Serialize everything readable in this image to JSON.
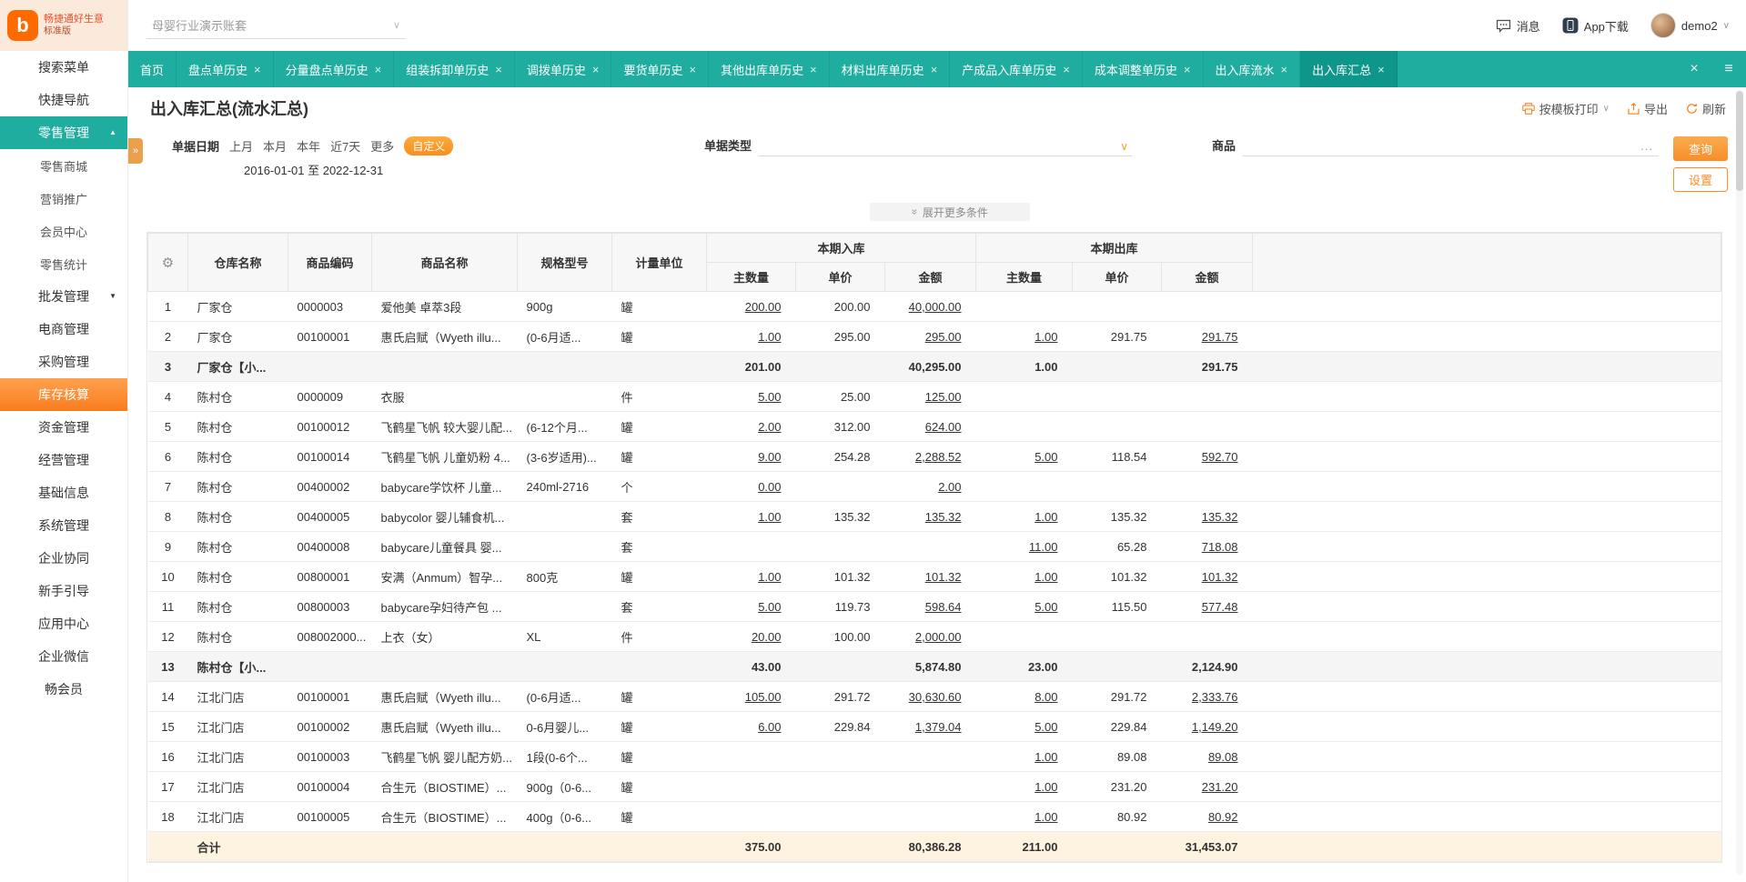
{
  "brand": {
    "name": "畅捷通好生意",
    "edition": "标准版",
    "logo_letter": "b"
  },
  "icons": {
    "close": "×",
    "chevron_down": "∨",
    "chevron_up": "▲",
    "caret_down": "▼",
    "double_chevron": "»",
    "gear": "⚙",
    "menu": "≡"
  },
  "topbar": {
    "account_name": "母婴行业演示账套",
    "message_label": "消息",
    "app_download_label": "App下载",
    "username": "demo2"
  },
  "sidebar": {
    "items": [
      {
        "label": "搜索菜单",
        "type": "plain"
      },
      {
        "label": "快捷导航",
        "type": "plain"
      },
      {
        "label": "零售管理",
        "type": "group-active",
        "arrow": "up"
      },
      {
        "label": "零售商城",
        "type": "sub"
      },
      {
        "label": "营销推广",
        "type": "sub"
      },
      {
        "label": "会员中心",
        "type": "sub"
      },
      {
        "label": "零售统计",
        "type": "sub"
      },
      {
        "label": "批发管理",
        "type": "plain",
        "arrow": "down"
      },
      {
        "label": "电商管理",
        "type": "plain"
      },
      {
        "label": "采购管理",
        "type": "plain"
      },
      {
        "label": "库存核算",
        "type": "current"
      },
      {
        "label": "资金管理",
        "type": "plain"
      },
      {
        "label": "经营管理",
        "type": "plain"
      },
      {
        "label": "基础信息",
        "type": "plain"
      },
      {
        "label": "系统管理",
        "type": "plain"
      },
      {
        "label": "企业协同",
        "type": "plain"
      },
      {
        "label": "新手引导",
        "type": "plain"
      },
      {
        "label": "应用中心",
        "type": "plain"
      },
      {
        "label": "企业微信",
        "type": "plain"
      },
      {
        "label": "畅会员",
        "type": "plain"
      }
    ]
  },
  "tabs": [
    {
      "label": "首页",
      "closable": false,
      "active": false
    },
    {
      "label": "盘点单历史",
      "closable": true,
      "active": false
    },
    {
      "label": "分量盘点单历史",
      "closable": true,
      "active": false
    },
    {
      "label": "组装拆卸单历史",
      "closable": true,
      "active": false
    },
    {
      "label": "调拨单历史",
      "closable": true,
      "active": false
    },
    {
      "label": "要货单历史",
      "closable": true,
      "active": false
    },
    {
      "label": "其他出库单历史",
      "closable": true,
      "active": false
    },
    {
      "label": "材料出库单历史",
      "closable": true,
      "active": false
    },
    {
      "label": "产成品入库单历史",
      "closable": true,
      "active": false
    },
    {
      "label": "成本调整单历史",
      "closable": true,
      "active": false
    },
    {
      "label": "出入库流水",
      "closable": true,
      "active": false
    },
    {
      "label": "出入库汇总",
      "closable": true,
      "active": true
    }
  ],
  "page": {
    "title": "出入库汇总(流水汇总)",
    "print_label": "按模板打印",
    "export_label": "导出",
    "refresh_label": "刷新"
  },
  "filters": {
    "date_label": "单据日期",
    "quick_links": [
      "上月",
      "本月",
      "本年",
      "近7天",
      "更多"
    ],
    "custom_label": "自定义",
    "date_range": "2016-01-01 至 2022-12-31",
    "doc_type_label": "单据类型",
    "product_label": "商品",
    "ellipsis": "...",
    "query_button": "查询",
    "settings_button": "设置",
    "expand_more": "展开更多条件"
  },
  "table": {
    "columns": [
      "仓库名称",
      "商品编码",
      "商品名称",
      "规格型号",
      "计量单位"
    ],
    "group_in": "本期入库",
    "group_out": "本期出库",
    "sub_columns": [
      "主数量",
      "单价",
      "金额"
    ],
    "rows": [
      {
        "no": "1",
        "warehouse": "厂家仓",
        "code": "0000003",
        "name": "爱他美 卓萃3段",
        "spec": "900g",
        "unit": "罐",
        "in_qty": "200.00",
        "in_price": "200.00",
        "in_amount": "40,000.00",
        "out_qty": "",
        "out_price": "",
        "out_amount": ""
      },
      {
        "no": "2",
        "warehouse": "厂家仓",
        "code": "00100001",
        "name": "惠氏启赋（Wyeth illu...",
        "spec": "(0-6月适...",
        "unit": "罐",
        "in_qty": "1.00",
        "in_price": "295.00",
        "in_amount": "295.00",
        "out_qty": "1.00",
        "out_price": "291.75",
        "out_amount": "291.75"
      },
      {
        "no": "3",
        "warehouse": "厂家仓【小...",
        "code": "",
        "name": "",
        "spec": "",
        "unit": "",
        "in_qty": "201.00",
        "in_price": "",
        "in_amount": "40,295.00",
        "out_qty": "1.00",
        "out_price": "",
        "out_amount": "291.75",
        "subtotal": true
      },
      {
        "no": "4",
        "warehouse": "陈村仓",
        "code": "0000009",
        "name": "衣服",
        "spec": "",
        "unit": "件",
        "in_qty": "5.00",
        "in_price": "25.00",
        "in_amount": "125.00",
        "out_qty": "",
        "out_price": "",
        "out_amount": ""
      },
      {
        "no": "5",
        "warehouse": "陈村仓",
        "code": "00100012",
        "name": "飞鹤星飞帆 较大婴儿配...",
        "spec": "(6-12个月...",
        "unit": "罐",
        "in_qty": "2.00",
        "in_price": "312.00",
        "in_amount": "624.00",
        "out_qty": "",
        "out_price": "",
        "out_amount": ""
      },
      {
        "no": "6",
        "warehouse": "陈村仓",
        "code": "00100014",
        "name": "飞鹤星飞帆 儿童奶粉 4...",
        "spec": "(3-6岁适用)...",
        "unit": "罐",
        "in_qty": "9.00",
        "in_price": "254.28",
        "in_amount": "2,288.52",
        "out_qty": "5.00",
        "out_price": "118.54",
        "out_amount": "592.70"
      },
      {
        "no": "7",
        "warehouse": "陈村仓",
        "code": "00400002",
        "name": "babycare学饮杯 儿童...",
        "spec": "240ml-2716",
        "unit": "个",
        "in_qty": "0.00",
        "in_price": "",
        "in_amount": "2.00",
        "out_qty": "",
        "out_price": "",
        "out_amount": ""
      },
      {
        "no": "8",
        "warehouse": "陈村仓",
        "code": "00400005",
        "name": "babycolor 婴儿辅食机...",
        "spec": "",
        "unit": "套",
        "in_qty": "1.00",
        "in_price": "135.32",
        "in_amount": "135.32",
        "out_qty": "1.00",
        "out_price": "135.32",
        "out_amount": "135.32"
      },
      {
        "no": "9",
        "warehouse": "陈村仓",
        "code": "00400008",
        "name": "babycare儿童餐具 婴...",
        "spec": "",
        "unit": "套",
        "in_qty": "",
        "in_price": "",
        "in_amount": "",
        "out_qty": "11.00",
        "out_price": "65.28",
        "out_amount": "718.08"
      },
      {
        "no": "10",
        "warehouse": "陈村仓",
        "code": "00800001",
        "name": "安满（Anmum）智孕...",
        "spec": "800克",
        "unit": "罐",
        "in_qty": "1.00",
        "in_price": "101.32",
        "in_amount": "101.32",
        "out_qty": "1.00",
        "out_price": "101.32",
        "out_amount": "101.32"
      },
      {
        "no": "11",
        "warehouse": "陈村仓",
        "code": "00800003",
        "name": "babycare孕妇待产包 ...",
        "spec": "",
        "unit": "套",
        "in_qty": "5.00",
        "in_price": "119.73",
        "in_amount": "598.64",
        "out_qty": "5.00",
        "out_price": "115.50",
        "out_amount": "577.48"
      },
      {
        "no": "12",
        "warehouse": "陈村仓",
        "code": "008002000...",
        "name": "上衣（女）",
        "spec": "XL",
        "unit": "件",
        "in_qty": "20.00",
        "in_price": "100.00",
        "in_amount": "2,000.00",
        "out_qty": "",
        "out_price": "",
        "out_amount": ""
      },
      {
        "no": "13",
        "warehouse": "陈村仓【小...",
        "code": "",
        "name": "",
        "spec": "",
        "unit": "",
        "in_qty": "43.00",
        "in_price": "",
        "in_amount": "5,874.80",
        "out_qty": "23.00",
        "out_price": "",
        "out_amount": "2,124.90",
        "subtotal": true
      },
      {
        "no": "14",
        "warehouse": "江北门店",
        "code": "00100001",
        "name": "惠氏启赋（Wyeth illu...",
        "spec": "(0-6月适...",
        "unit": "罐",
        "in_qty": "105.00",
        "in_price": "291.72",
        "in_amount": "30,630.60",
        "out_qty": "8.00",
        "out_price": "291.72",
        "out_amount": "2,333.76"
      },
      {
        "no": "15",
        "warehouse": "江北门店",
        "code": "00100002",
        "name": "惠氏启赋（Wyeth illu...",
        "spec": "0-6月婴儿...",
        "unit": "罐",
        "in_qty": "6.00",
        "in_price": "229.84",
        "in_amount": "1,379.04",
        "out_qty": "5.00",
        "out_price": "229.84",
        "out_amount": "1,149.20"
      },
      {
        "no": "16",
        "warehouse": "江北门店",
        "code": "00100003",
        "name": "飞鹤星飞帆 婴儿配方奶...",
        "spec": "1段(0-6个...",
        "unit": "罐",
        "in_qty": "",
        "in_price": "",
        "in_amount": "",
        "out_qty": "1.00",
        "out_price": "89.08",
        "out_amount": "89.08"
      },
      {
        "no": "17",
        "warehouse": "江北门店",
        "code": "00100004",
        "name": "合生元（BIOSTIME）...",
        "spec": "900g（0-6...",
        "unit": "罐",
        "in_qty": "",
        "in_price": "",
        "in_amount": "",
        "out_qty": "1.00",
        "out_price": "231.20",
        "out_amount": "231.20"
      },
      {
        "no": "18",
        "warehouse": "江北门店",
        "code": "00100005",
        "name": "合生元（BIOSTIME）...",
        "spec": "400g（0-6...",
        "unit": "罐",
        "in_qty": "",
        "in_price": "",
        "in_amount": "",
        "out_qty": "1.00",
        "out_price": "80.92",
        "out_amount": "80.92"
      }
    ],
    "total_row": {
      "no": "",
      "warehouse": "合计",
      "code": "",
      "name": "",
      "spec": "",
      "unit": "",
      "in_qty": "375.00",
      "in_price": "",
      "in_amount": "80,386.28",
      "out_qty": "211.00",
      "out_price": "",
      "out_amount": "31,453.07"
    }
  }
}
